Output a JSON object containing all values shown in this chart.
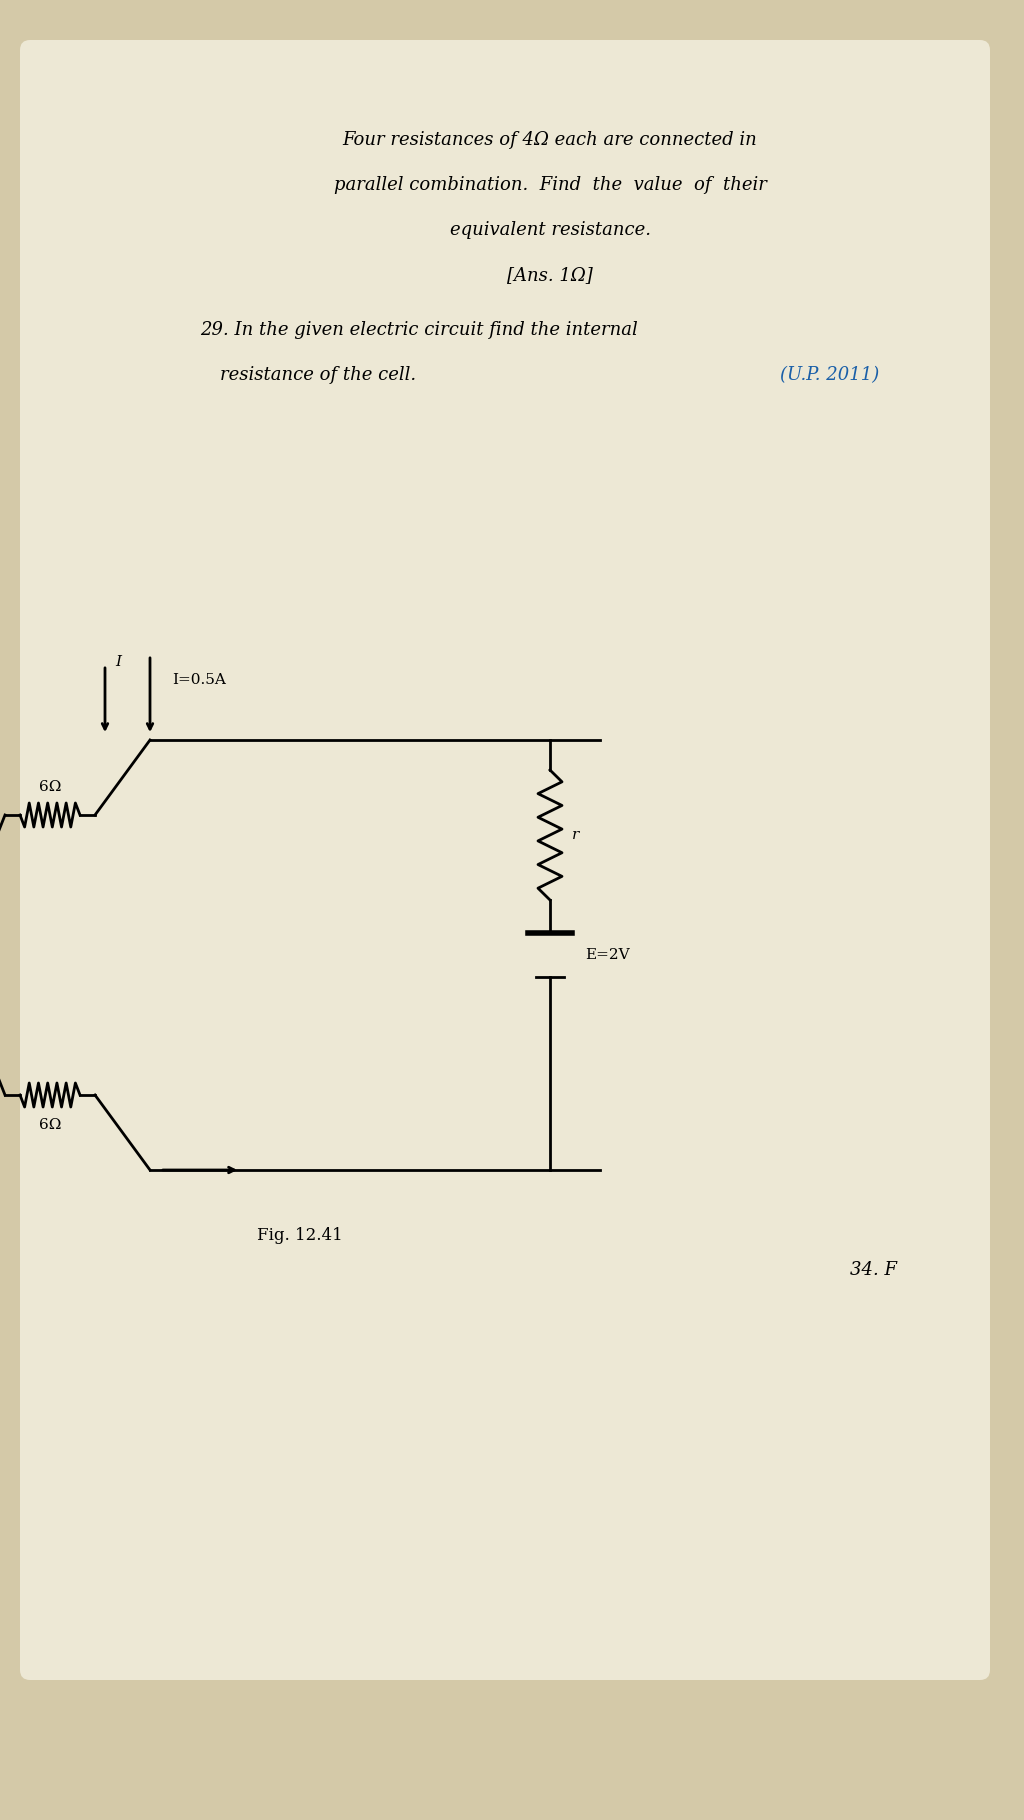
{
  "bg_color": "#d4c9a8",
  "page_bg": "#ede8d5",
  "title_text_28a": "Four resistances of 4Ω each are connected in",
  "title_text_28b": "parallel combination.  Find  the  value  of  their",
  "title_text_28c": "equivalent resistance.",
  "ans_28": "[Ans. 1Ω]",
  "q29_text1": "29. In the given electric circuit find the internal",
  "q29_text2": "resistance of the cell.",
  "q29_ref": "(U.P. 2011)",
  "q34_text": "34. F",
  "fig_label": "Fig. 12.41",
  "E_label": "E=2V",
  "I_label": "I=0.5A",
  "r_label": "r",
  "R1_label": "6Ω",
  "R2_label": "6Ω",
  "circuit_color": "#000000",
  "text_color": "#000000",
  "blue_color": "#1a5fa8"
}
